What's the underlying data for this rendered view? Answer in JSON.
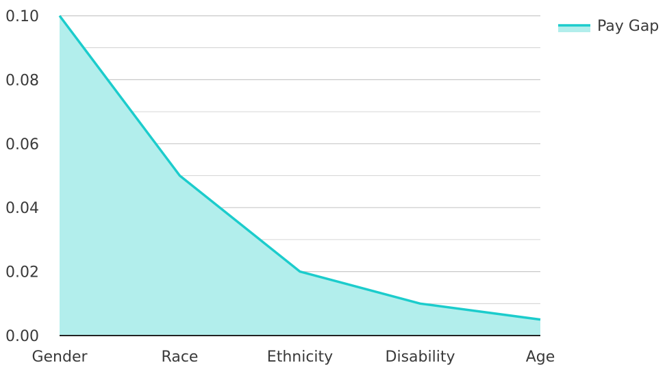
{
  "chart_data": {
    "type": "area",
    "categories": [
      "Gender",
      "Race",
      "Ethnicity",
      "Disability",
      "Age"
    ],
    "series": [
      {
        "name": "Pay Gap",
        "values": [
          0.1,
          0.05,
          0.02,
          0.01,
          0.005
        ]
      }
    ],
    "y_ticks": [
      "0.00",
      "0.02",
      "0.04",
      "0.06",
      "0.08",
      "0.10"
    ],
    "ylim": [
      0,
      0.1
    ],
    "grid": true,
    "legend_position": "top-right",
    "colors": {
      "line": "#1ccccc",
      "fill": "#b2eeec",
      "grid": "#c8c8c8",
      "axis": "#222222"
    }
  }
}
